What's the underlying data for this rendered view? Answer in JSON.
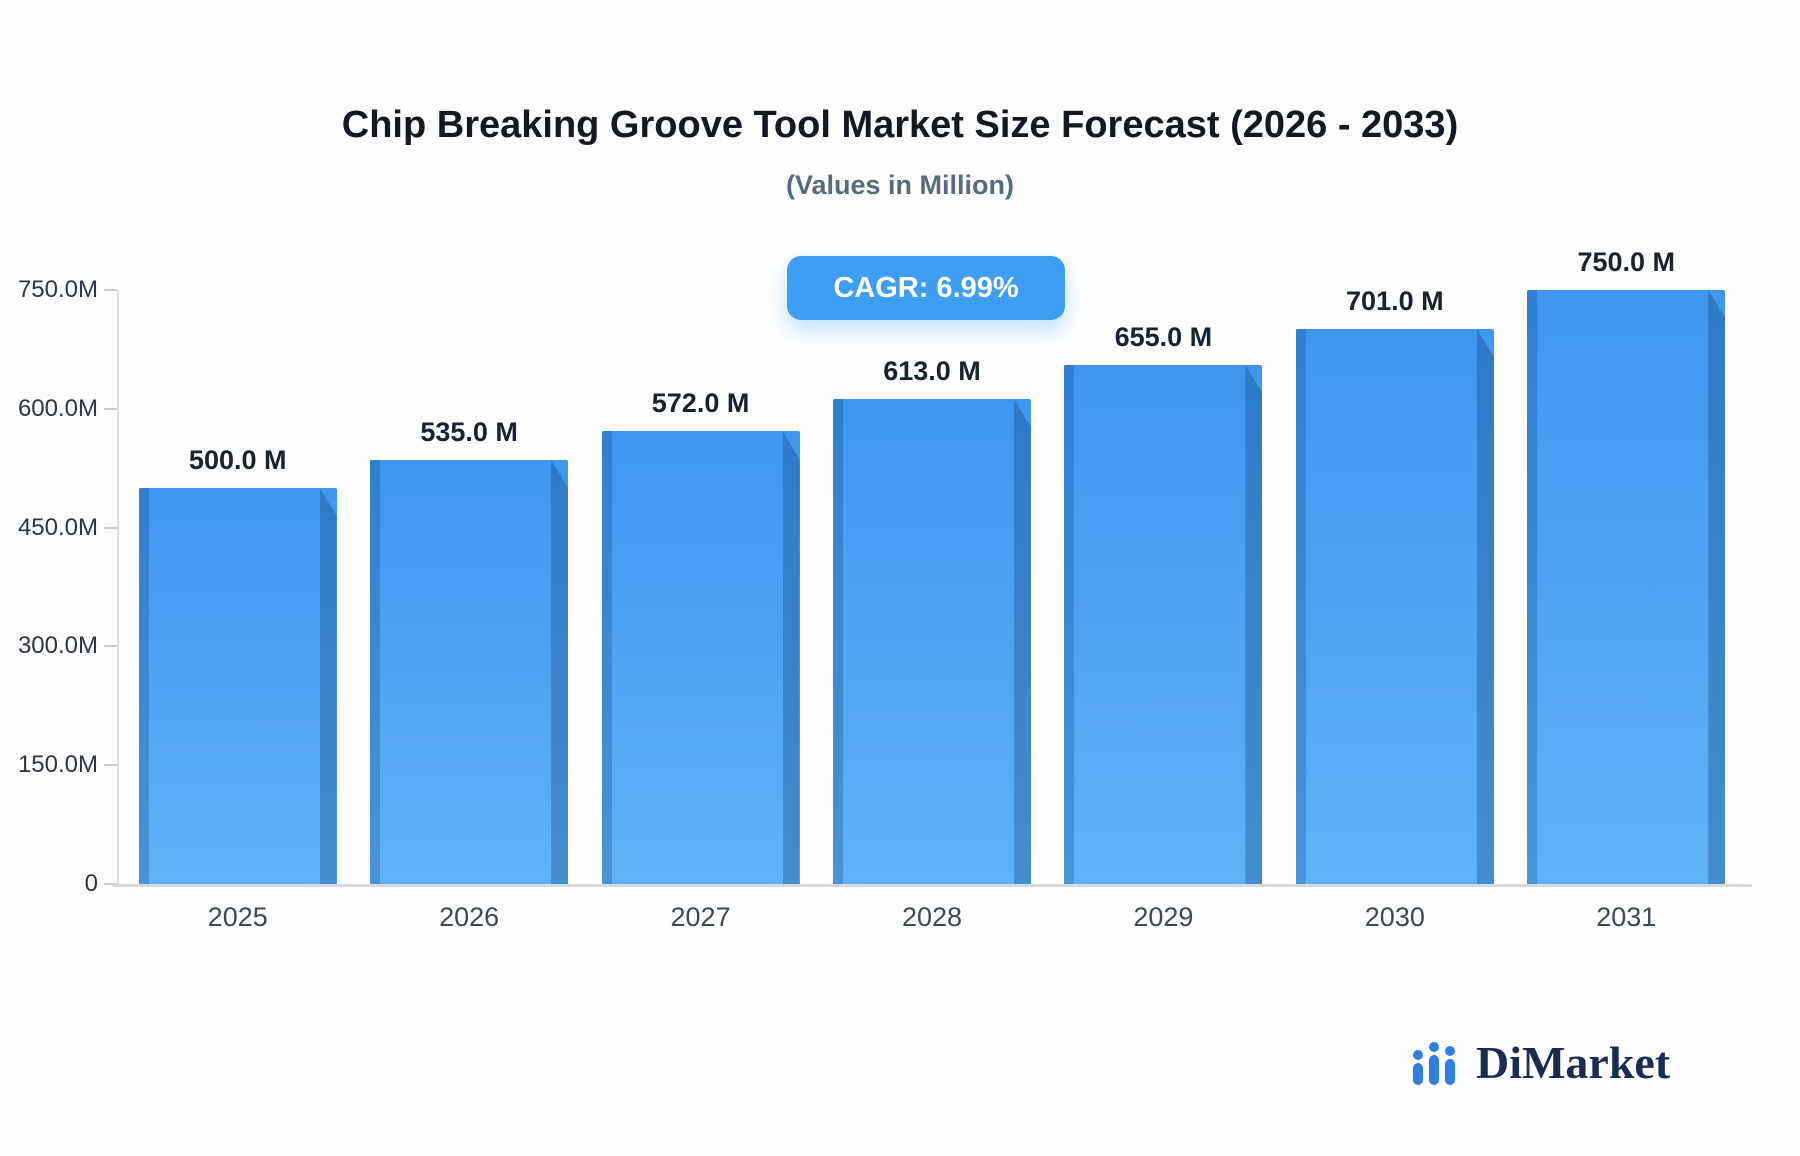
{
  "header": {
    "title": "Chip Breaking Groove Tool Market Size Forecast (2026 - 2033)",
    "subtitle": "(Values in Million)"
  },
  "badge": {
    "label": "CAGR: 6.99%",
    "bg": "#3d9ef3",
    "text_color": "#ffffff"
  },
  "chart_data": {
    "type": "bar",
    "title": "Chip Breaking Groove Tool Market Size Forecast (2026 - 2033)",
    "subtitle": "(Values in Million)",
    "categories": [
      "2025",
      "2026",
      "2027",
      "2028",
      "2029",
      "2030",
      "2031"
    ],
    "values": [
      500.0,
      535.0,
      572.0,
      613.0,
      655.0,
      701.0,
      750.0
    ],
    "bar_labels": [
      "500.0 M",
      "535.0 M",
      "572.0 M",
      "613.0 M",
      "655.0 M",
      "701.0 M",
      "750.0 M"
    ],
    "xlabel": "",
    "ylabel": "",
    "ylim": [
      0,
      750
    ],
    "y_ticks": [
      {
        "value": 750,
        "label": "750.0M"
      },
      {
        "value": 600,
        "label": "600.0M"
      },
      {
        "value": 450,
        "label": "450.0M"
      },
      {
        "value": 300,
        "label": "300.0M"
      },
      {
        "value": 150,
        "label": "150.0M"
      },
      {
        "value": 0,
        "label": "0"
      }
    ],
    "grid": false,
    "legend": false,
    "bar_color_top": "#3e96ee",
    "bar_color_bottom": "#5fb2f7",
    "bar_side_color": "#2174cc"
  },
  "footer": {
    "logo_text": "DiMarket",
    "logo_color": "#1d2b50",
    "icon_color": "#2f7fe2",
    "logo_icon": "bar-chart-icon"
  }
}
